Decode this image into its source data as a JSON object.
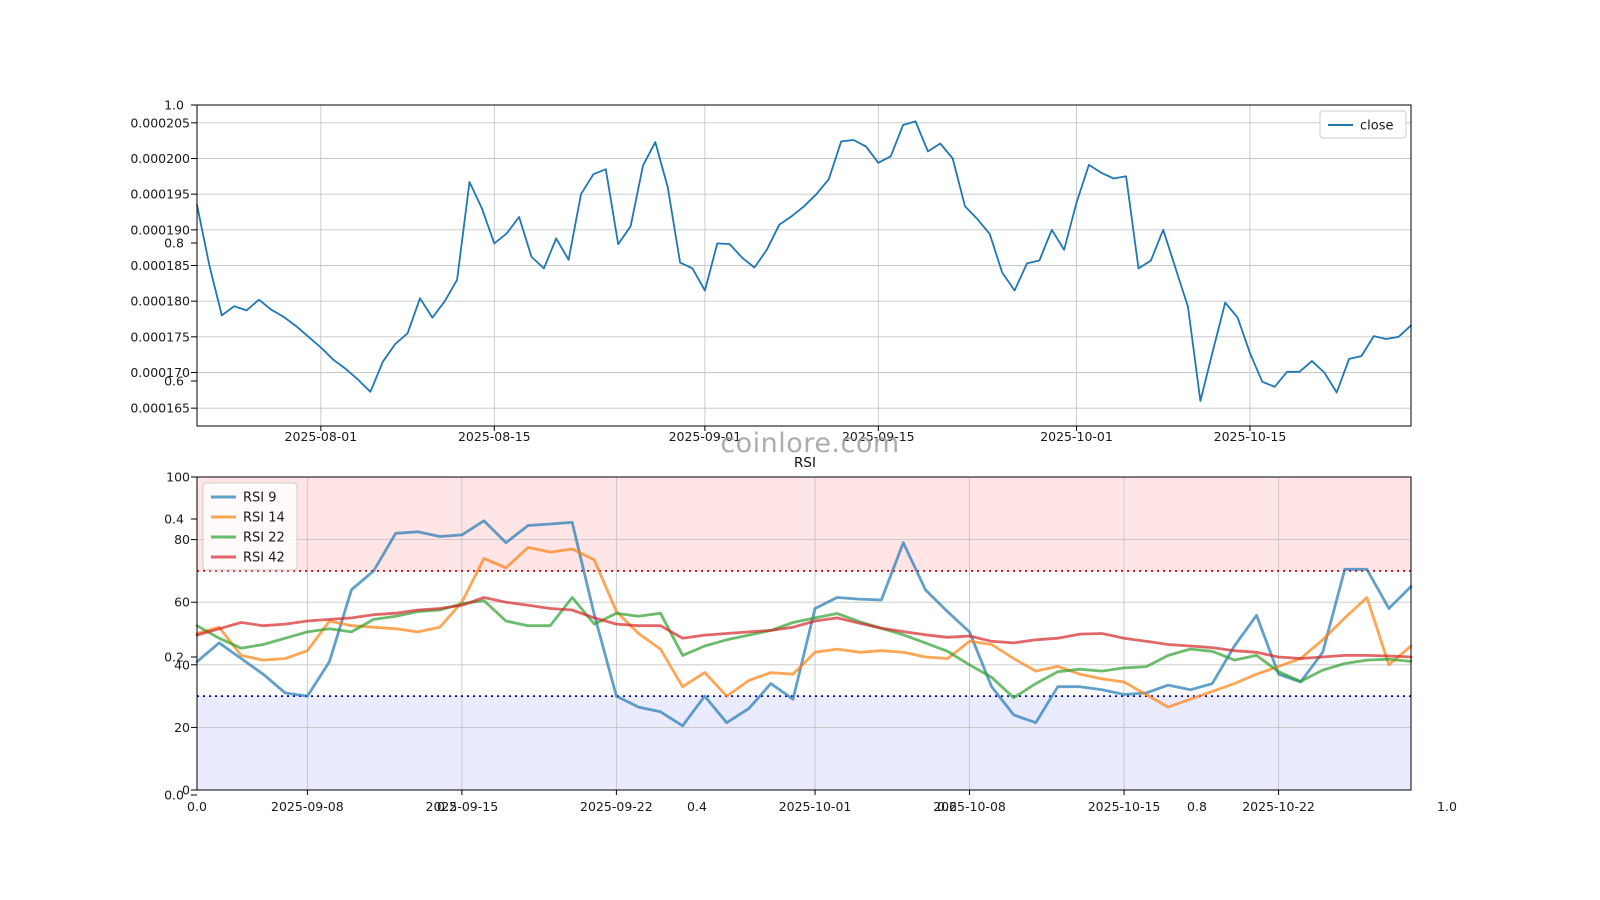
{
  "watermark": {
    "text": "coinlore.com",
    "color": "#9e9e9e"
  },
  "colors": {
    "close_line": "#1f77b4",
    "rsi9": "#1f77b4",
    "rsi14": "#ff7f0e",
    "rsi22": "#2ca02c",
    "rsi42": "#d62728",
    "overbought_band": "rgba(255,0,0,0.10)",
    "oversold_band": "rgba(0,0,255,0.08)",
    "overbought_line": "#cc0000",
    "oversold_line": "#0000bb",
    "grid": "#c6c6c6",
    "spine": "#000000",
    "tick_text": "#1a1a1a"
  },
  "overlay_axis": {
    "x_ticks": [
      "0.0",
      "0.2",
      "0.4",
      "0.6",
      "0.8",
      "1.0"
    ],
    "y_ticks": [
      "1.0",
      "0.8",
      "0.6",
      "0.4",
      "0.2",
      "0.0"
    ]
  },
  "chart_data": [
    {
      "id": "price",
      "type": "line",
      "title": "",
      "x_start": "2025-07-22",
      "x_freq": "daily",
      "ylim": [
        0.0001625,
        0.0002075
      ],
      "grid": true,
      "y_ticks": [
        {
          "v": 0.000165,
          "label": "0.000165"
        },
        {
          "v": 0.00017,
          "label": "0.000170"
        },
        {
          "v": 0.000175,
          "label": "0.000175"
        },
        {
          "v": 0.00018,
          "label": "0.000180"
        },
        {
          "v": 0.000185,
          "label": "0.000185"
        },
        {
          "v": 0.00019,
          "label": "0.000190"
        },
        {
          "v": 0.000195,
          "label": "0.000195"
        },
        {
          "v": 0.0002,
          "label": "0.000200"
        },
        {
          "v": 0.000205,
          "label": "0.000205"
        }
      ],
      "x_ticks": [
        "2025-08-01",
        "2025-08-15",
        "2025-09-01",
        "2025-09-15",
        "2025-10-01",
        "2025-10-15"
      ],
      "legend": {
        "position": "upper right",
        "entries": [
          {
            "label": "close",
            "color": "#1f77b4"
          }
        ]
      },
      "series": [
        {
          "name": "close",
          "color": "#1f77b4",
          "width": 1.8,
          "alpha": 1,
          "values": [
            0.0001935,
            0.000185,
            0.000178,
            0.0001793,
            0.0001787,
            0.0001802,
            0.0001788,
            0.0001778,
            0.0001765,
            0.000175,
            0.0001735,
            0.0001718,
            0.0001705,
            0.000169,
            0.0001673,
            0.0001715,
            0.000174,
            0.0001755,
            0.0001804,
            0.0001777,
            0.00018,
            0.000183,
            0.0001967,
            0.000193,
            0.0001881,
            0.0001895,
            0.0001918,
            0.0001862,
            0.0001846,
            0.0001888,
            0.0001858,
            0.000195,
            0.0001978,
            0.0001985,
            0.000188,
            0.0001905,
            0.000199,
            0.0002023,
            0.000196,
            0.0001854,
            0.0001846,
            0.0001815,
            0.0001881,
            0.000188,
            0.0001861,
            0.0001847,
            0.0001872,
            0.0001907,
            0.0001919,
            0.0001933,
            0.000195,
            0.0001971,
            0.0002024,
            0.0002026,
            0.0002017,
            0.0001994,
            0.0002003,
            0.0002047,
            0.0002052,
            0.000201,
            0.0002021,
            0.0002,
            0.0001933,
            0.0001915,
            0.0001894,
            0.000184,
            0.0001815,
            0.0001853,
            0.0001857,
            0.00019,
            0.0001872,
            0.0001938,
            0.0001991,
            0.000198,
            0.0001972,
            0.0001975,
            0.0001846,
            0.0001857,
            0.00019,
            0.0001846,
            0.0001792,
            0.000166,
            0.000173,
            0.0001798,
            0.0001777,
            0.0001727,
            0.0001687,
            0.000168,
            0.0001701,
            0.0001701,
            0.0001716,
            0.00017,
            0.0001672,
            0.0001719,
            0.0001723,
            0.0001751,
            0.0001747,
            0.000175,
            0.0001766
          ]
        }
      ]
    },
    {
      "id": "rsi",
      "type": "line",
      "title": "RSI",
      "x_start": "2025-09-03",
      "x_freq": "daily",
      "ylim": [
        0,
        100
      ],
      "grid": true,
      "y_ticks": [
        {
          "v": 0,
          "label": "0"
        },
        {
          "v": 20,
          "label": "20"
        },
        {
          "v": 40,
          "label": "40"
        },
        {
          "v": 60,
          "label": "60"
        },
        {
          "v": 80,
          "label": "80"
        },
        {
          "v": 100,
          "label": "100"
        }
      ],
      "x_ticks": [
        "2025-09-08",
        "2025-09-15",
        "2025-09-22",
        "2025-10-01",
        "2025-10-08",
        "2025-10-15",
        "2025-10-22"
      ],
      "hlines": [
        {
          "y": 70,
          "color": "#cc0000",
          "style": "dotted",
          "name": "overbought-70"
        },
        {
          "y": 30,
          "color": "#0000bb",
          "style": "dotted",
          "name": "oversold-30"
        }
      ],
      "bands": [
        {
          "from": 70,
          "to": 100,
          "color": "rgba(255,0,0,0.10)",
          "name": "overbought-zone"
        },
        {
          "from": 0,
          "to": 30,
          "color": "rgba(0,0,255,0.08)",
          "name": "oversold-zone"
        }
      ],
      "legend": {
        "position": "upper left",
        "entries": [
          {
            "label": "RSI 9",
            "color": "#1f77b4"
          },
          {
            "label": "RSI 14",
            "color": "#ff7f0e"
          },
          {
            "label": "RSI 22",
            "color": "#2ca02c"
          },
          {
            "label": "RSI 42",
            "color": "#d62728"
          }
        ]
      },
      "series": [
        {
          "name": "RSI 9",
          "color": "#1f77b4",
          "width": 2.8,
          "alpha": 0.7,
          "values": [
            41,
            47,
            42,
            37,
            31,
            30,
            41,
            64,
            70,
            82,
            82.5,
            81,
            81.5,
            86,
            79,
            84.5,
            85,
            85.5,
            56,
            30,
            26.5,
            25,
            20.5,
            30,
            21.5,
            26,
            34,
            29,
            58,
            61.5,
            61,
            60.7,
            79,
            64,
            57,
            50.5,
            33,
            24,
            21.5,
            33,
            33,
            32,
            30.5,
            31,
            33.5,
            32,
            34,
            46,
            55.8,
            37,
            34.5,
            44,
            70.5,
            70.5,
            58,
            65
          ]
        },
        {
          "name": "RSI 14",
          "color": "#ff7f0e",
          "width": 2.8,
          "alpha": 0.7,
          "values": [
            50,
            52,
            43,
            41.5,
            42,
            44.5,
            54,
            52.5,
            52,
            51.5,
            50.5,
            52,
            60,
            74,
            71,
            77.5,
            76,
            77,
            73.5,
            57,
            50,
            45,
            33,
            37.5,
            30,
            35,
            37.5,
            37,
            44,
            45,
            44,
            44.5,
            44,
            42.5,
            42,
            47.5,
            46.5,
            42,
            38,
            39.5,
            37,
            35.5,
            34.5,
            30.5,
            26.5,
            29,
            31.5,
            34,
            37,
            39.5,
            42,
            48,
            55,
            61.5,
            40,
            46
          ]
        },
        {
          "name": "RSI 22",
          "color": "#2ca02c",
          "width": 2.8,
          "alpha": 0.7,
          "values": [
            52.5,
            48.5,
            45.3,
            46.5,
            48.5,
            50.5,
            51.5,
            50.5,
            54.5,
            55.5,
            57,
            57.5,
            59.5,
            60.5,
            54,
            52.5,
            52.5,
            61.5,
            53,
            56.5,
            55.5,
            56.5,
            43,
            46,
            48,
            49.5,
            51,
            53.5,
            55,
            56.4,
            53.8,
            51.7,
            49.6,
            47,
            44.3,
            40,
            36,
            29.5,
            34,
            37.8,
            38.6,
            38,
            39,
            39.4,
            43,
            45,
            44.3,
            41.5,
            43,
            37.8,
            34.7,
            38.3,
            40.4,
            41.5,
            41.8,
            41.1
          ]
        },
        {
          "name": "RSI 42",
          "color": "#d62728",
          "width": 2.8,
          "alpha": 0.7,
          "values": [
            49.5,
            51.5,
            53.5,
            52.5,
            53,
            54,
            54.5,
            55,
            56,
            56.5,
            57.5,
            58,
            59,
            61.5,
            60,
            59,
            58,
            57.5,
            55,
            53,
            52.5,
            52.5,
            48.5,
            49.5,
            50,
            50.5,
            51,
            52,
            54,
            55,
            53.3,
            51.7,
            50.6,
            49.6,
            48.8,
            49.2,
            47.5,
            47,
            48,
            48.5,
            49.8,
            50,
            48.5,
            47.5,
            46.5,
            46,
            45.5,
            44.5,
            44,
            42.5,
            42,
            42.5,
            43,
            43,
            42.8,
            42.5
          ]
        }
      ]
    }
  ]
}
